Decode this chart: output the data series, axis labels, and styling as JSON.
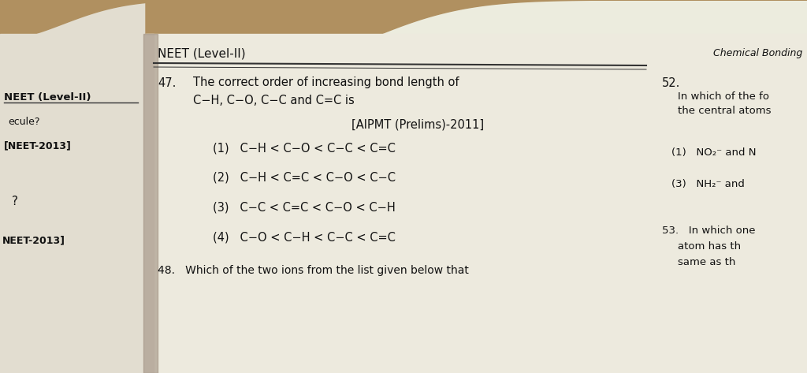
{
  "bg_top": "#b8a888",
  "bg_wood": "#c4a87a",
  "page_color": "#e8e4d8",
  "page_left_color": "#dedad0",
  "left_strip_color": "#d0ccc0",
  "shadow_color": "#8a7a60",
  "header_text": "NEET (Level-II)",
  "left_label1": "NEET (Level-II)",
  "left_label2": "ecule?",
  "left_label3": "[NEET-2013]",
  "left_label4": "?",
  "left_label5": "NEET-2013]",
  "right_label": "Chemical Bonding",
  "question_num": "47.",
  "question_text": "The correct order of increasing bond length of",
  "question_text2": "C−H, C−O, C−C and C=C is",
  "source": "[AIPMT (Prelims)-2011]",
  "options": [
    "(1)   C−H < C−O < C−C < C=C",
    "(2)   C−H < C=C < C−O < C−C",
    "(3)   C−C < C=C < C−O < C−H",
    "(4)   C−O < C−H < C−C < C=C"
  ],
  "q48_text": "48.   Which of the two ions from the list given below that",
  "q52_num": "52.",
  "q52_line1": "In which of the fo",
  "q52_line2": "the central atoms",
  "r_opt1": "(1)   NO₂⁻ and N",
  "r_opt3": "(3)   NH₂⁻ and",
  "q53_line1": "53.   In which one",
  "q53_line2": "atom has th",
  "q53_line3": "same as th"
}
